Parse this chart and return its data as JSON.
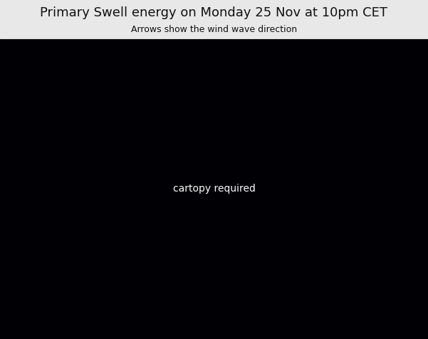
{
  "title": "Primary Swell energy on Monday 25 Nov at 10pm CET",
  "subtitle": "Arrows show the wind wave direction",
  "title_fontsize": 13,
  "subtitle_fontsize": 9,
  "title_color": "#111111",
  "background_color": "#e8e8e8",
  "fig_width": 6.01,
  "fig_height": 4.76,
  "dpi": 100,
  "map_extent": [
    -26,
    40,
    35,
    72
  ],
  "title_box_color": "#d8d8d8",
  "land_color": "#aaaaaa",
  "ocean_bg": "#000000",
  "border_color": "#222222"
}
